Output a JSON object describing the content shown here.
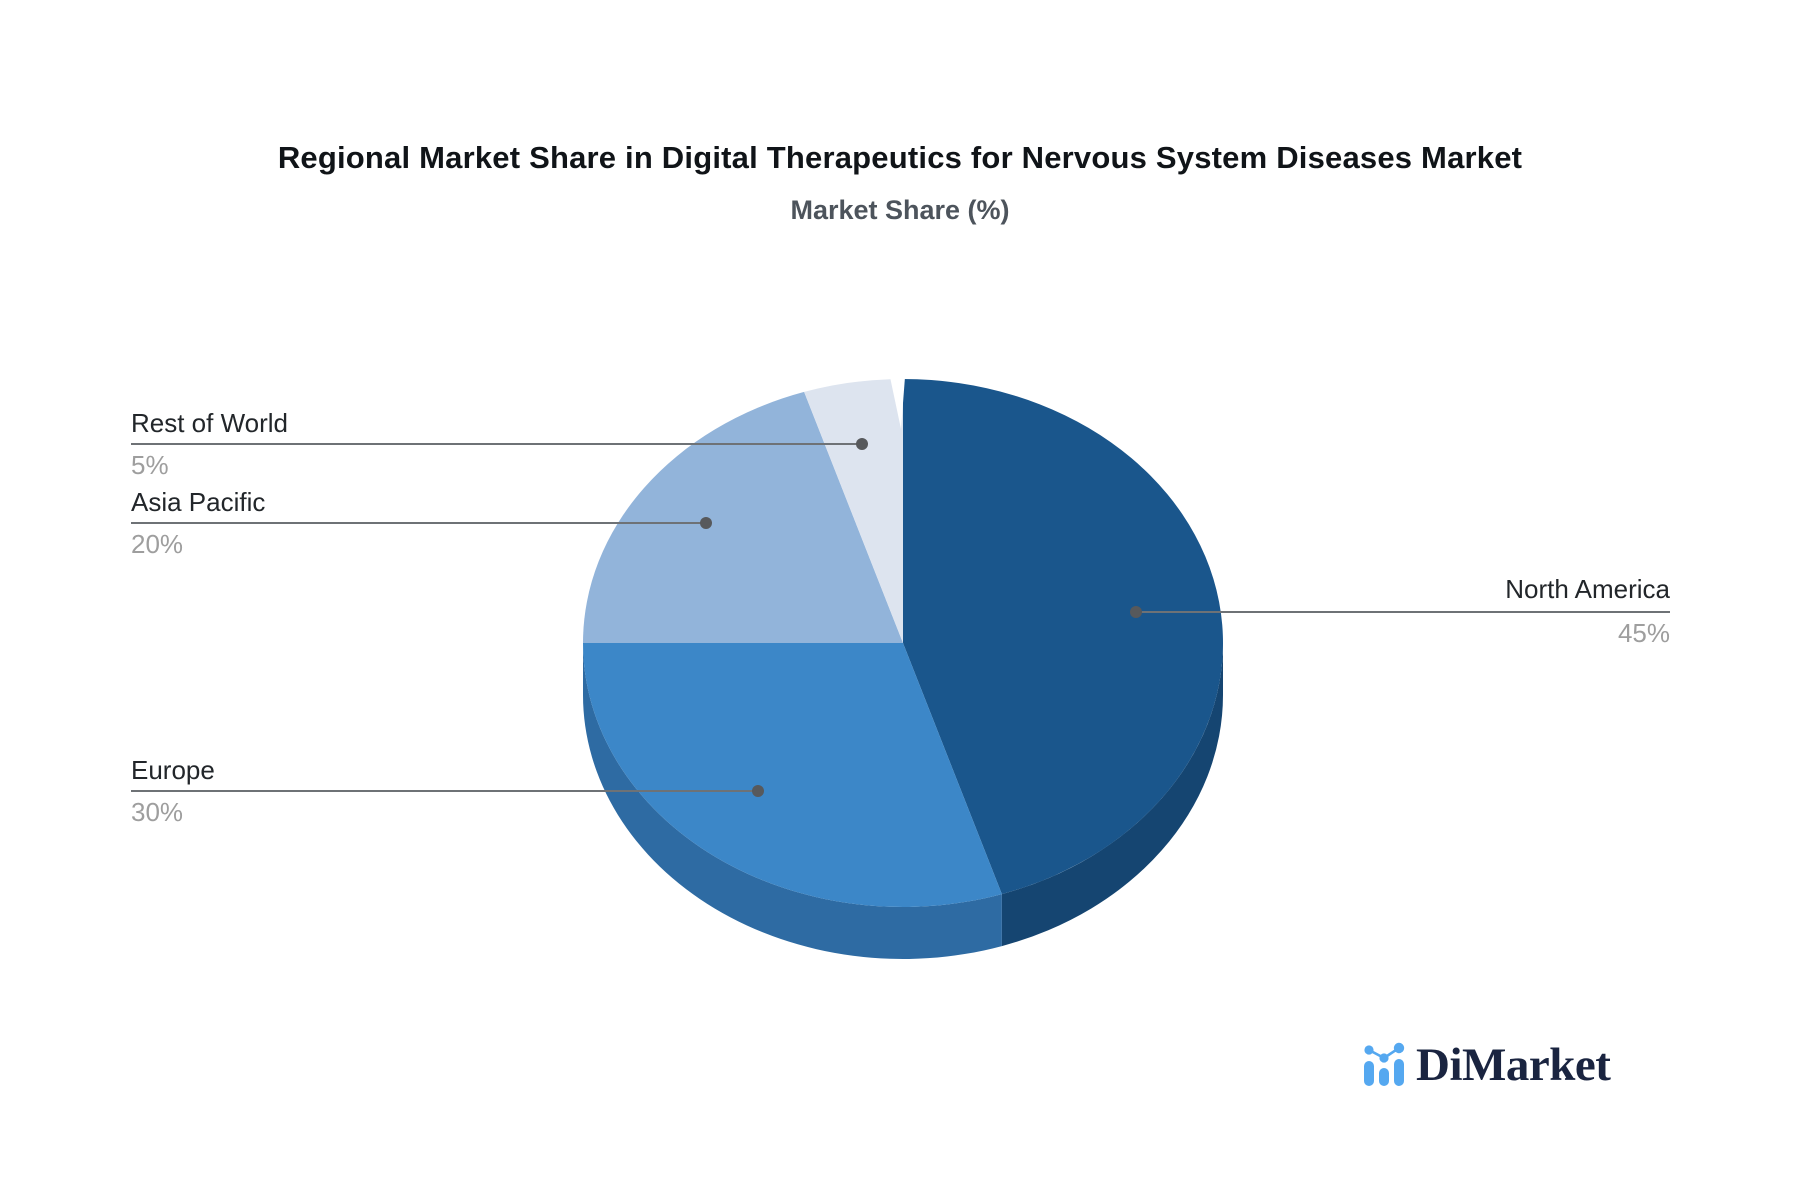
{
  "chart_data": {
    "type": "pie",
    "title": "Regional Market Share in Digital Therapeutics for Nervous System Diseases Market",
    "subtitle": "Market Share (%)",
    "unit": "%",
    "direction": "clockwise",
    "start_angle_deg": 0,
    "effect_3d": true,
    "legend_position": "none",
    "slices": [
      {
        "label": "North America",
        "value": 45,
        "value_label": "45%",
        "color": "#1a568c",
        "side_color": "#154571",
        "label_side": "right"
      },
      {
        "label": "Europe",
        "value": 30,
        "value_label": "30%",
        "color": "#3c87c8",
        "side_color": "#2e6ba3",
        "label_side": "left"
      },
      {
        "label": "Asia Pacific",
        "value": 20,
        "value_label": "20%",
        "color": "#92b4da",
        "label_side": "left"
      },
      {
        "label": "Rest of World",
        "value": 5,
        "value_label": "5%",
        "color": "#dde4ef",
        "label_side": "left"
      }
    ]
  },
  "branding": {
    "logo_text": "DiMarket",
    "logo_icon": "bar-line-chart-icon",
    "logo_text_color": "#1a2440",
    "logo_accent_color": "#55a8f0"
  },
  "colors": {
    "background": "#ffffff",
    "title": "#101418",
    "subtitle": "#4d545c",
    "label_text": "#22262a",
    "value_text": "#9e9e9e",
    "leader_line": "#6e7276",
    "leader_dot": "#57595c"
  }
}
